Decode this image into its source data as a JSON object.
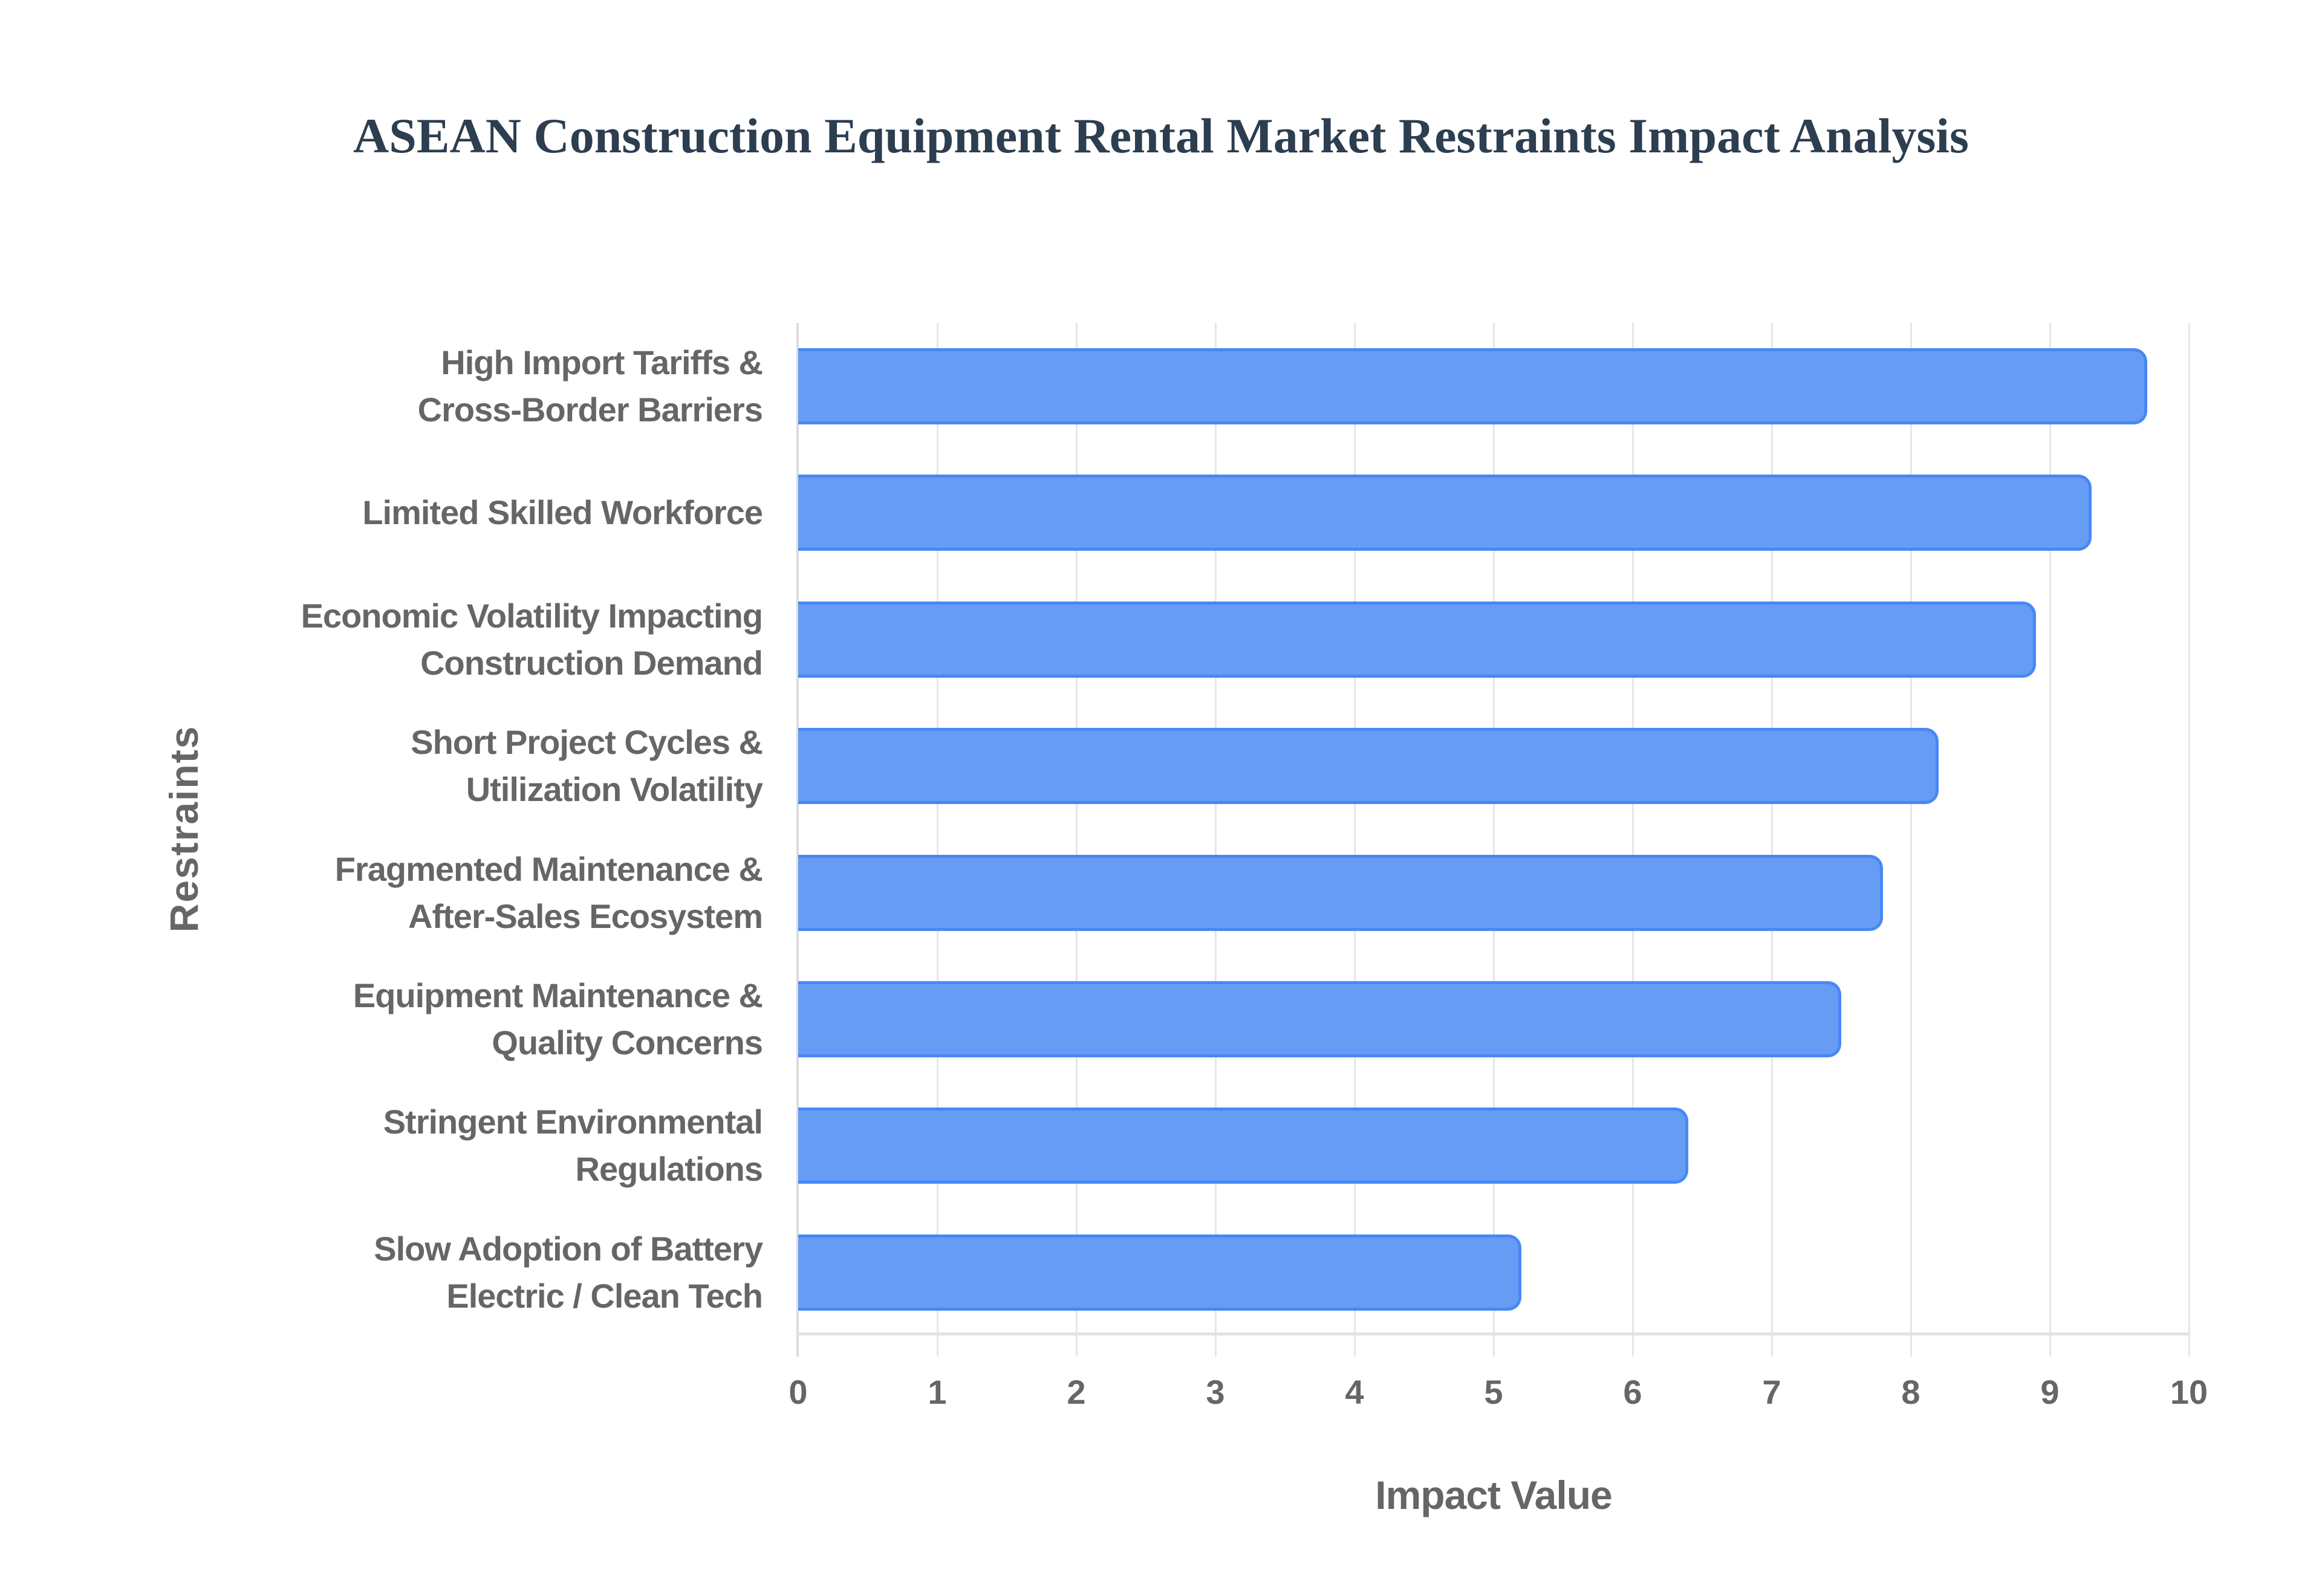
{
  "chart_data": {
    "type": "bar",
    "orientation": "horizontal",
    "title": "ASEAN Construction Equipment Rental Market Restraints Impact Analysis",
    "xlabel": "Impact Value",
    "ylabel": "Restraints",
    "xlim": [
      0,
      10
    ],
    "xticks": [
      "0",
      "1",
      "2",
      "3",
      "4",
      "5",
      "6",
      "7",
      "8",
      "9",
      "10"
    ],
    "grid": true,
    "legend": null,
    "bar_color": "#6399f5",
    "bar_border_color": "#4285f4",
    "categories": [
      "High Import Tariffs & Cross-Border Barriers",
      "Limited Skilled Workforce",
      "Economic Volatility Impacting Construction Demand",
      "Short Project Cycles & Utilization Volatility",
      "Fragmented Maintenance & After-Sales Ecosystem",
      "Equipment Maintenance & Quality Concerns",
      "Stringent Environmental Regulations",
      "Slow Adoption of Battery Electric / Clean Tech"
    ],
    "category_display_lines": [
      "High Import Tariffs &\nCross-Border Barriers",
      "Limited Skilled Workforce",
      "Economic Volatility Impacting\nConstruction Demand",
      "Short Project Cycles &\nUtilization Volatility",
      "Fragmented Maintenance &\nAfter-Sales Ecosystem",
      "Equipment Maintenance &\nQuality Concerns",
      "Stringent Environmental\nRegulations",
      "Slow Adoption of Battery\nElectric / Clean Tech"
    ],
    "values": [
      9.7,
      9.3,
      8.9,
      8.2,
      7.8,
      7.5,
      6.4,
      5.2
    ]
  }
}
